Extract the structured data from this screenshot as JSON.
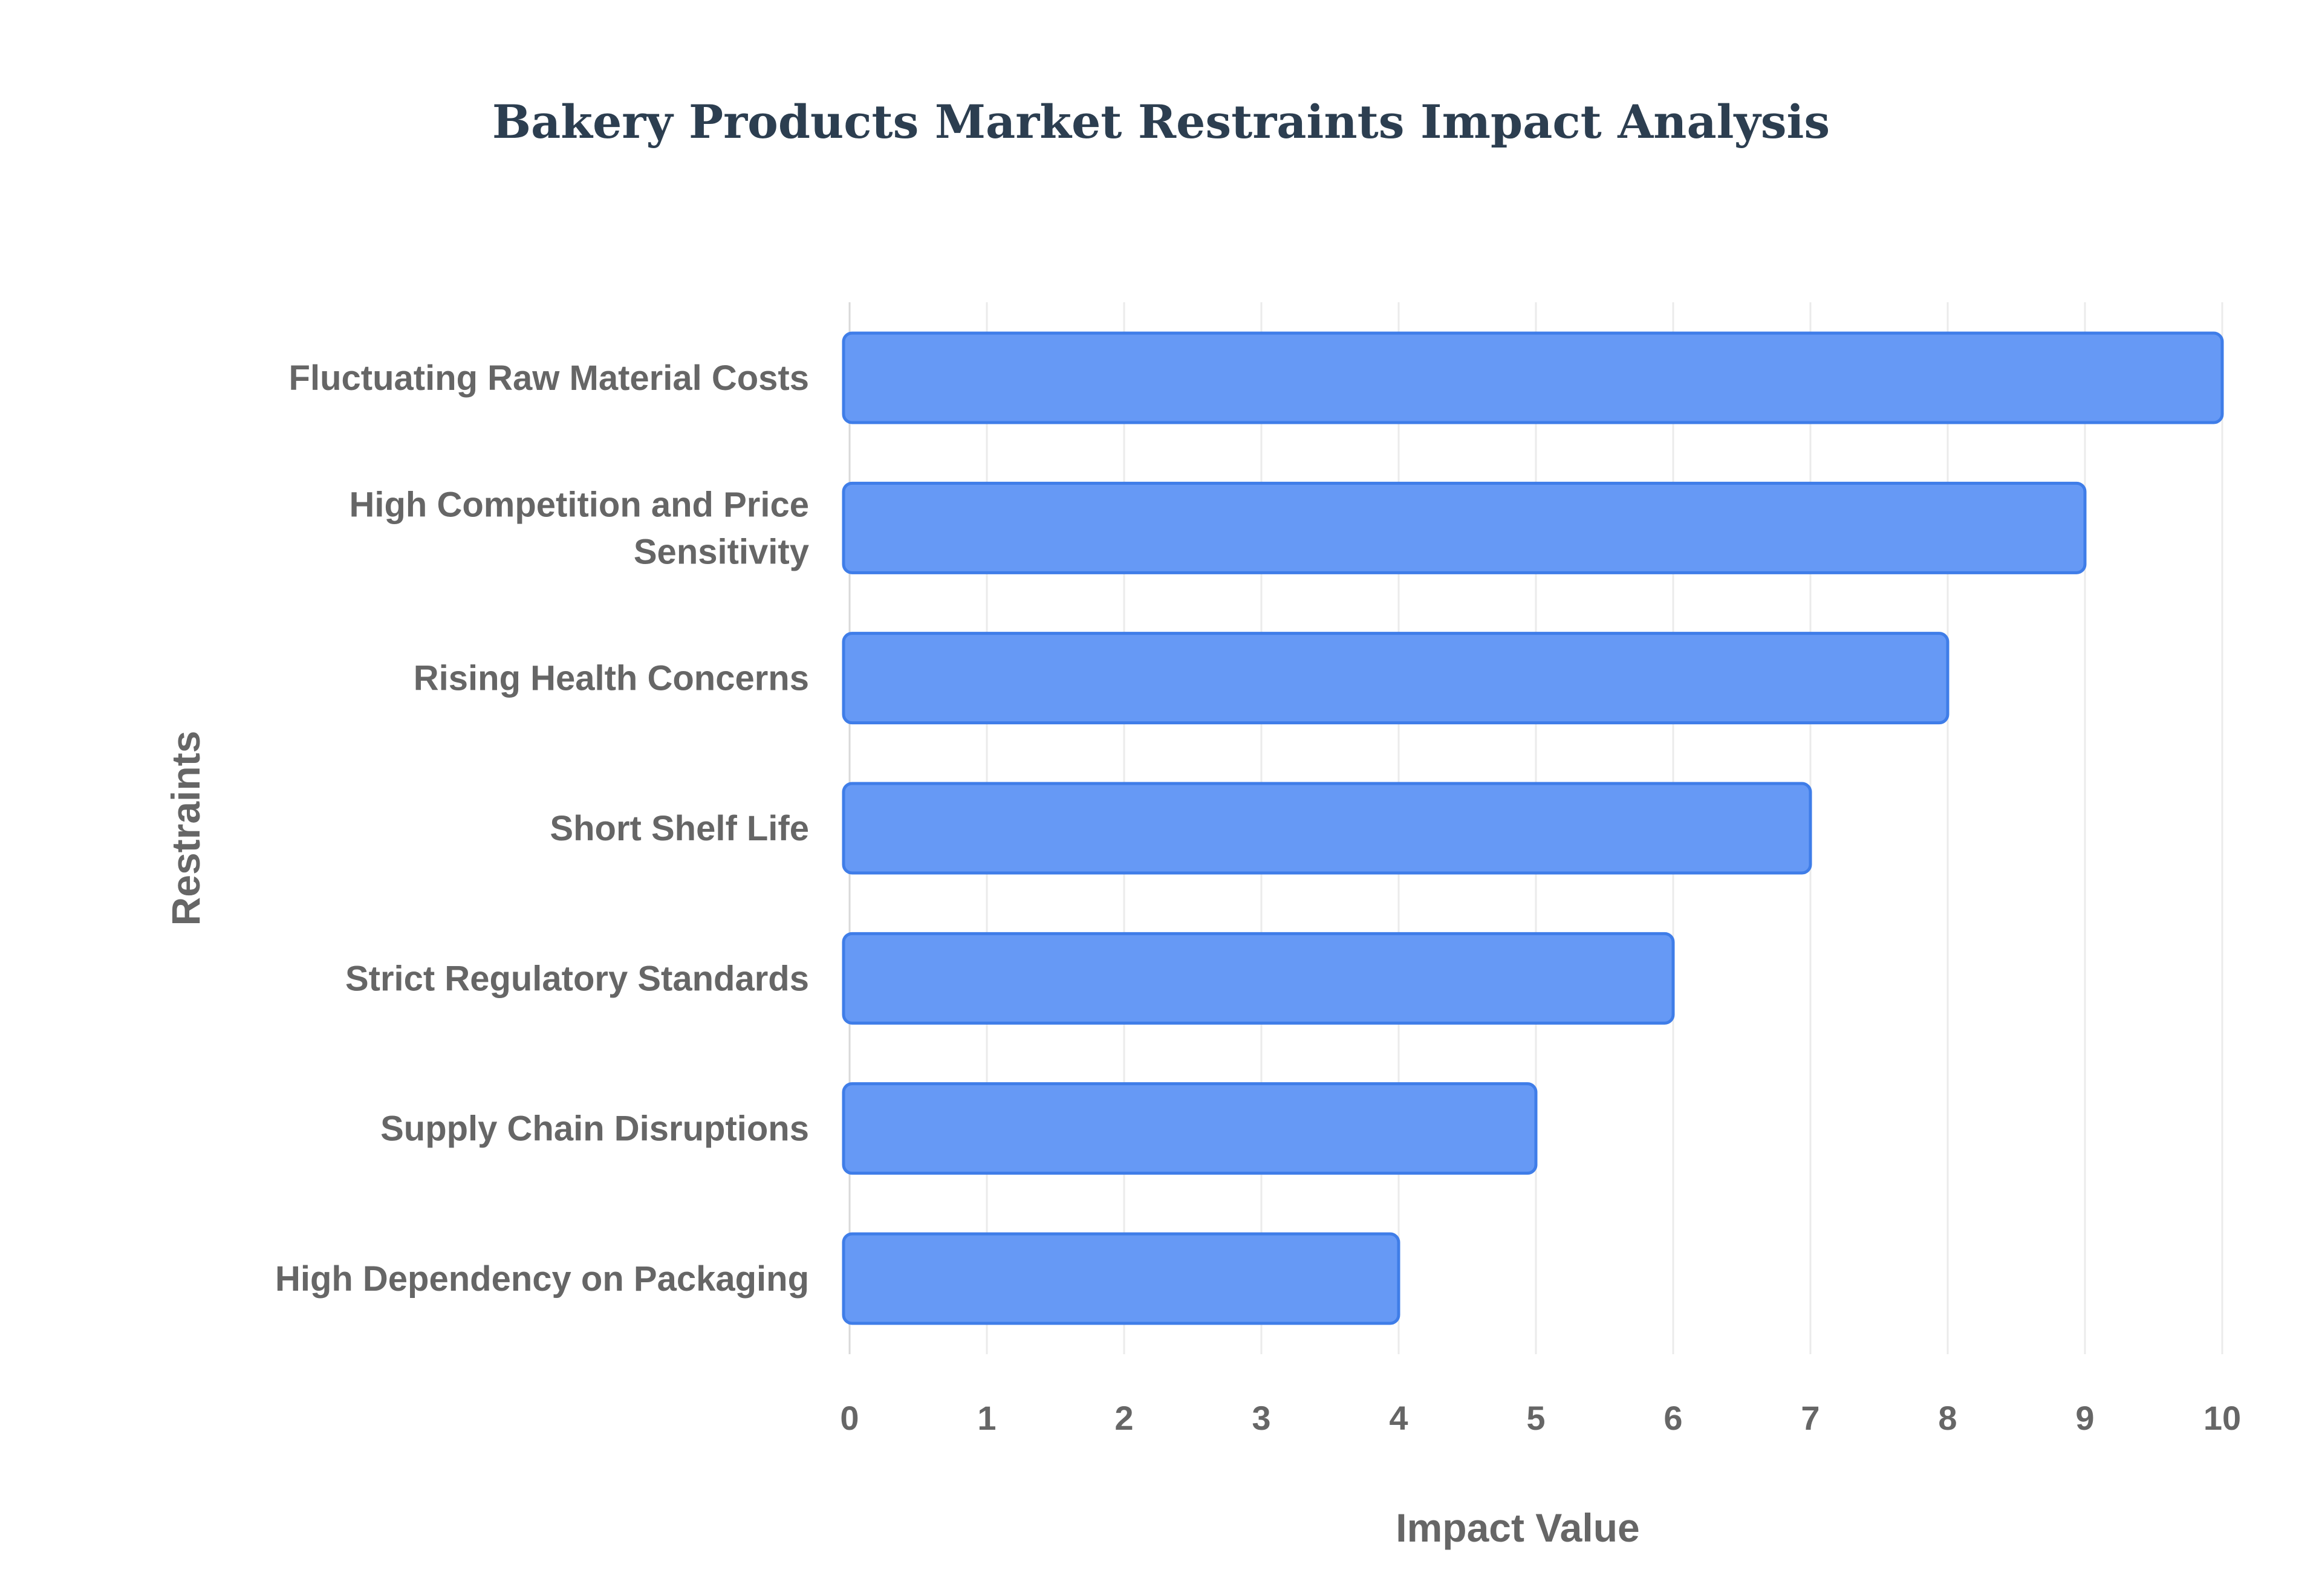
{
  "chart_data": {
    "type": "bar",
    "orientation": "horizontal",
    "title": "Bakery Products Market Restraints Impact Analysis",
    "xlabel": "Impact Value",
    "ylabel": "Restraints",
    "categories": [
      "Fluctuating Raw Material Costs",
      "High Competition and Price Sensitivity",
      "Rising Health Concerns",
      "Short Shelf Life",
      "Strict Regulatory Standards",
      "Supply Chain Disruptions",
      "High Dependency on Packaging"
    ],
    "category_label_lines": [
      [
        "Fluctuating Raw Material Costs"
      ],
      [
        "High Competition and Price",
        "Sensitivity"
      ],
      [
        "Rising Health Concerns"
      ],
      [
        "Short Shelf Life"
      ],
      [
        "Strict Regulatory Standards"
      ],
      [
        "Supply Chain Disruptions"
      ],
      [
        "High Dependency on Packaging"
      ]
    ],
    "values": [
      10,
      9,
      8,
      7,
      6,
      5,
      4
    ],
    "xlim": [
      0,
      10
    ],
    "xticks": [
      "0",
      "1",
      "2",
      "3",
      "4",
      "5",
      "6",
      "7",
      "8",
      "9",
      "10"
    ],
    "grid": true,
    "legend": "none",
    "bar_color": "#6699f5",
    "bar_border_color": "#3f7de8"
  }
}
